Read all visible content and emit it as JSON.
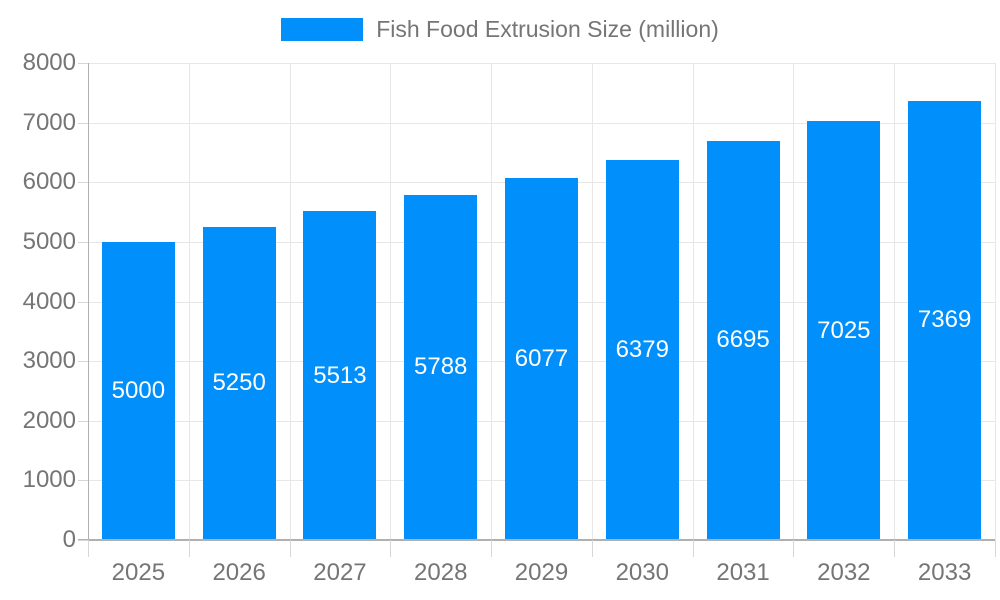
{
  "chart_data": {
    "type": "bar",
    "title": "",
    "legend": {
      "label": "Fish Food Extrusion Size (million)",
      "position": "top",
      "marker_color": "#008FFB"
    },
    "categories": [
      "2025",
      "2026",
      "2027",
      "2028",
      "2029",
      "2030",
      "2031",
      "2032",
      "2033"
    ],
    "series": [
      {
        "name": "Fish Food Extrusion Size (million)",
        "values": [
          5000,
          5250,
          5513,
          5788,
          6077,
          6379,
          6695,
          7025,
          7369
        ]
      }
    ],
    "bar_value_labels": [
      "5000",
      "5250",
      "5513",
      "5788",
      "6077",
      "6379",
      "6695",
      "7025",
      "7369"
    ],
    "xlabel": "",
    "ylabel": "",
    "ylim": [
      0,
      8000
    ],
    "ytick_step": 1000,
    "ytick_labels": [
      "0",
      "1000",
      "2000",
      "3000",
      "4000",
      "5000",
      "6000",
      "7000",
      "8000"
    ],
    "grid": {
      "horizontal": true,
      "vertical": true
    },
    "colors": {
      "bar": "#008FFB",
      "bar_label": "#FFFFFF",
      "axis_label": "#757575",
      "legend_text": "#757575",
      "gridline": "#E7E7E7",
      "tick": "#D6D6D6",
      "axis_line": "#B0B0B0"
    }
  }
}
